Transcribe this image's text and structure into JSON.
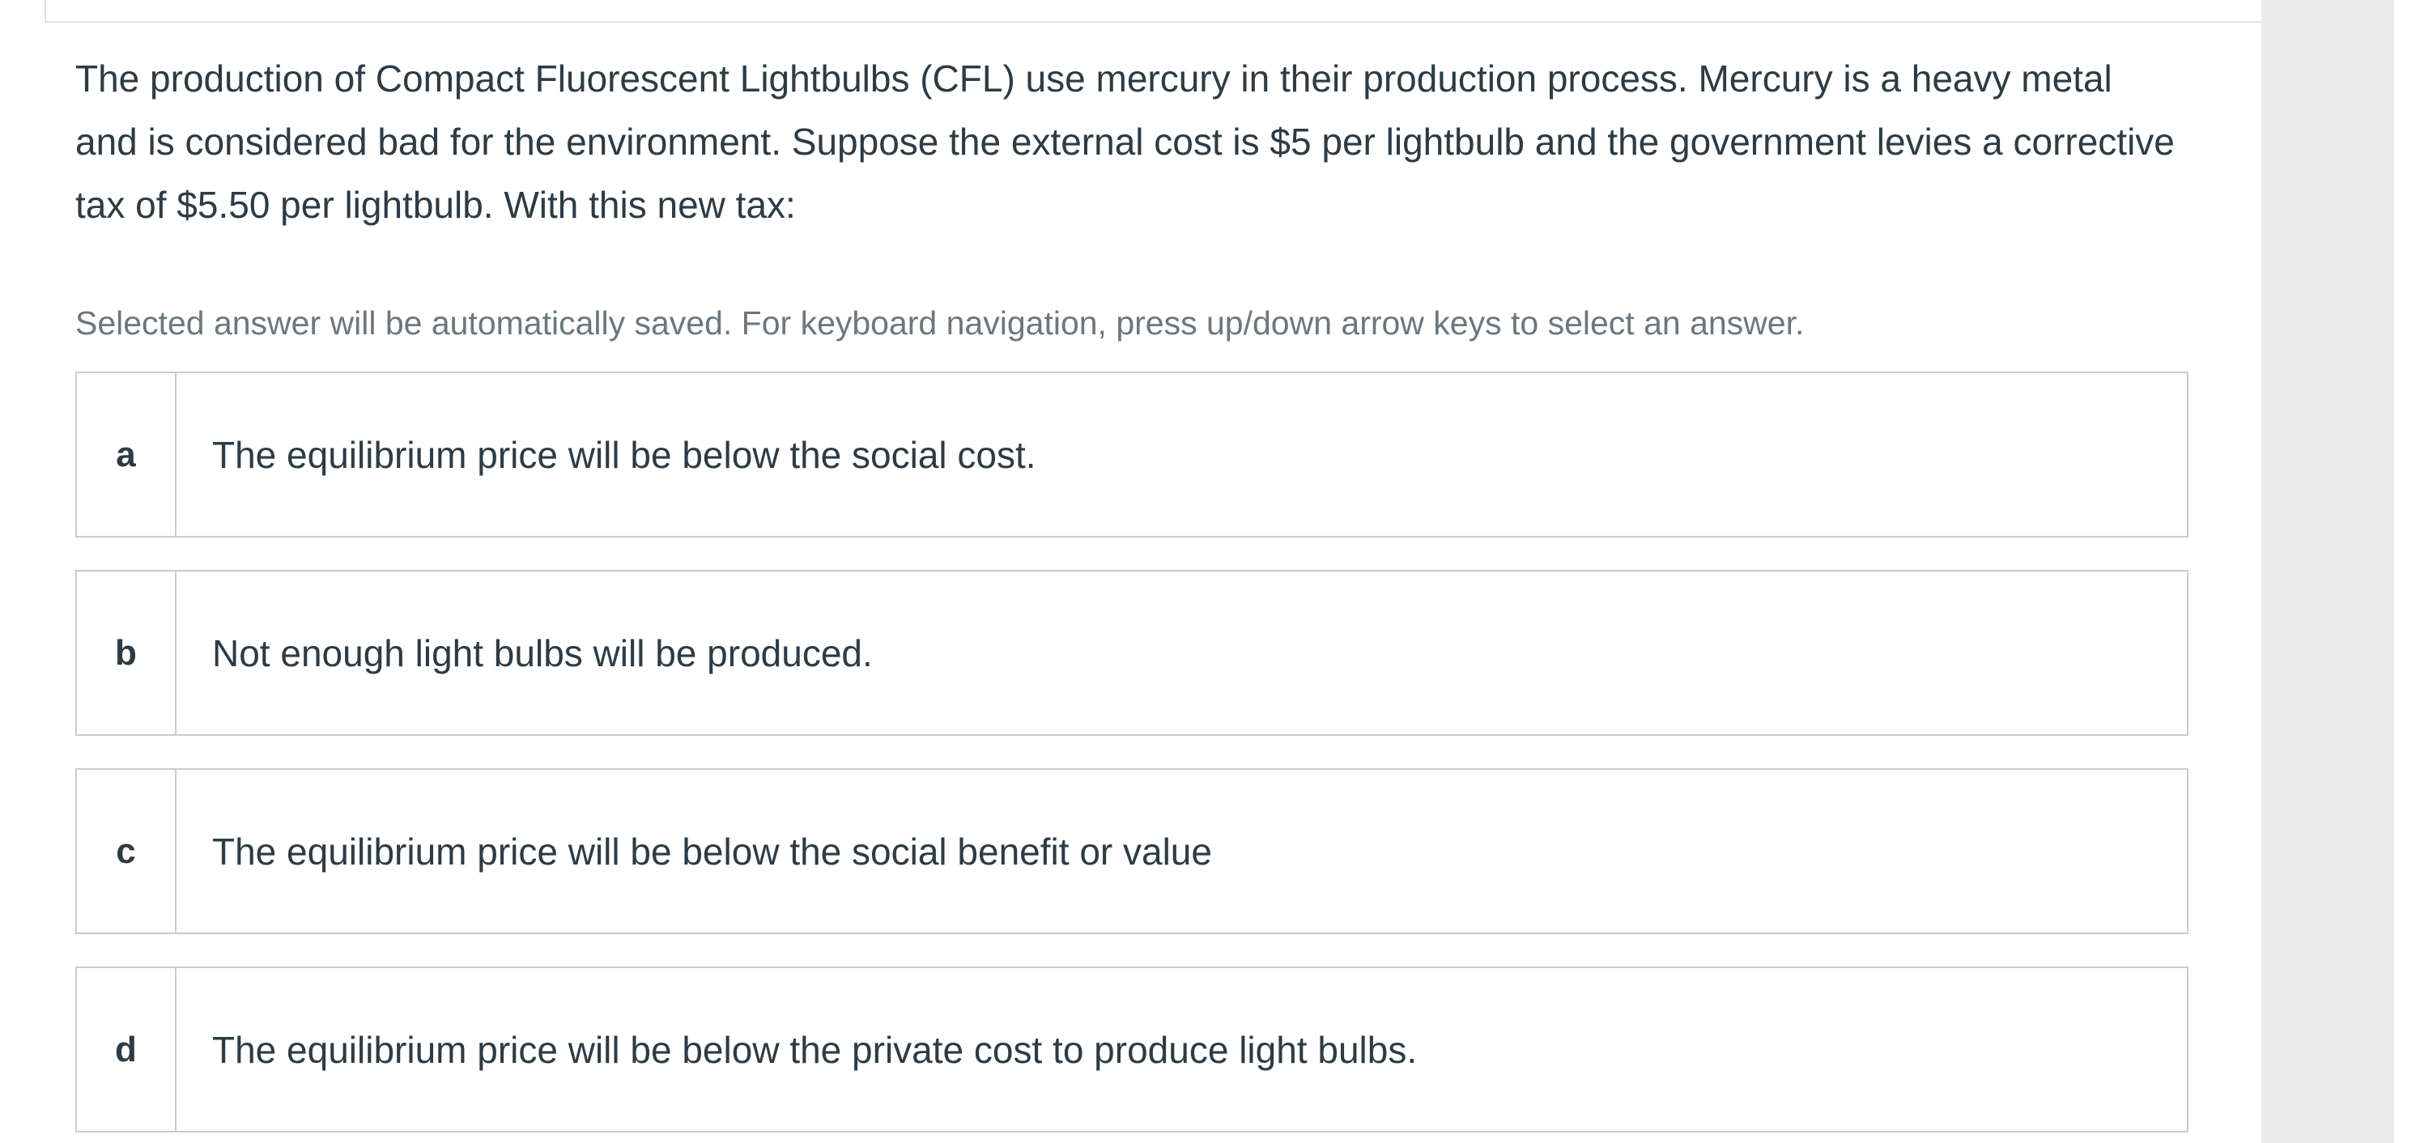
{
  "question": {
    "text": "The production of Compact Fluorescent Lightbulbs (CFL) use mercury in their production process. Mercury is a heavy metal and is considered bad for the environment. Suppose the external cost is $5 per lightbulb and the government levies a corrective tax of $5.50 per lightbulb. With this new tax:"
  },
  "instruction": "Selected answer will be automatically saved. For keyboard navigation, press up/down arrow keys to select an answer.",
  "colors": {
    "text_primary": "#2d3b45",
    "text_secondary": "#6b7780",
    "border": "#c7cdd1",
    "gutter": "#ebebeb"
  },
  "options": [
    {
      "letter": "a",
      "text": "The equilibrium price will be below the social cost."
    },
    {
      "letter": "b",
      "text": "Not enough light bulbs will be produced."
    },
    {
      "letter": "c",
      "text": "The equilibrium price will be below the social benefit or value"
    },
    {
      "letter": "d",
      "text": "The equilibrium price will be below the private cost to produce light bulbs."
    }
  ]
}
